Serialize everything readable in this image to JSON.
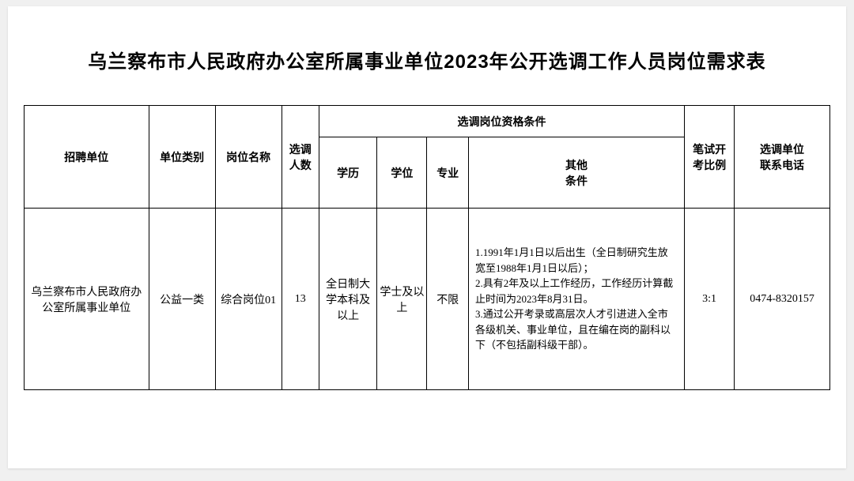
{
  "title": "乌兰察布市人民政府办公室所属事业单位2023年公开选调工作人员岗位需求表",
  "headers": {
    "unit": "招聘单位",
    "type": "单位类别",
    "post": "岗位名称",
    "num": "选调\n人数",
    "group": "选调岗位资格条件",
    "edu": "学历",
    "deg": "学位",
    "major": "专业",
    "other": "其他\n条件",
    "ratio": "笔试开\n考比例",
    "phone": "选调单位\n联系电话"
  },
  "row": {
    "unit": "乌兰察布市人民政府办公室所属事业单位",
    "type": "公益一类",
    "post": "综合岗位01",
    "num": "13",
    "edu": "全日制大学本科及以上",
    "deg": "学士及以上",
    "major": "不限",
    "other": "1.1991年1月1日以后出生（全日制研究生放宽至1988年1月1日以后）；\n2.具有2年及以上工作经历，工作经历计算截止时间为2023年8月31日。\n3.通过公开考录或高层次人才引进进入全市各级机关、事业单位，且在编在岗的副科以下（不包括副科级干部）。",
    "ratio": "3:1",
    "phone": "0474-8320157"
  }
}
